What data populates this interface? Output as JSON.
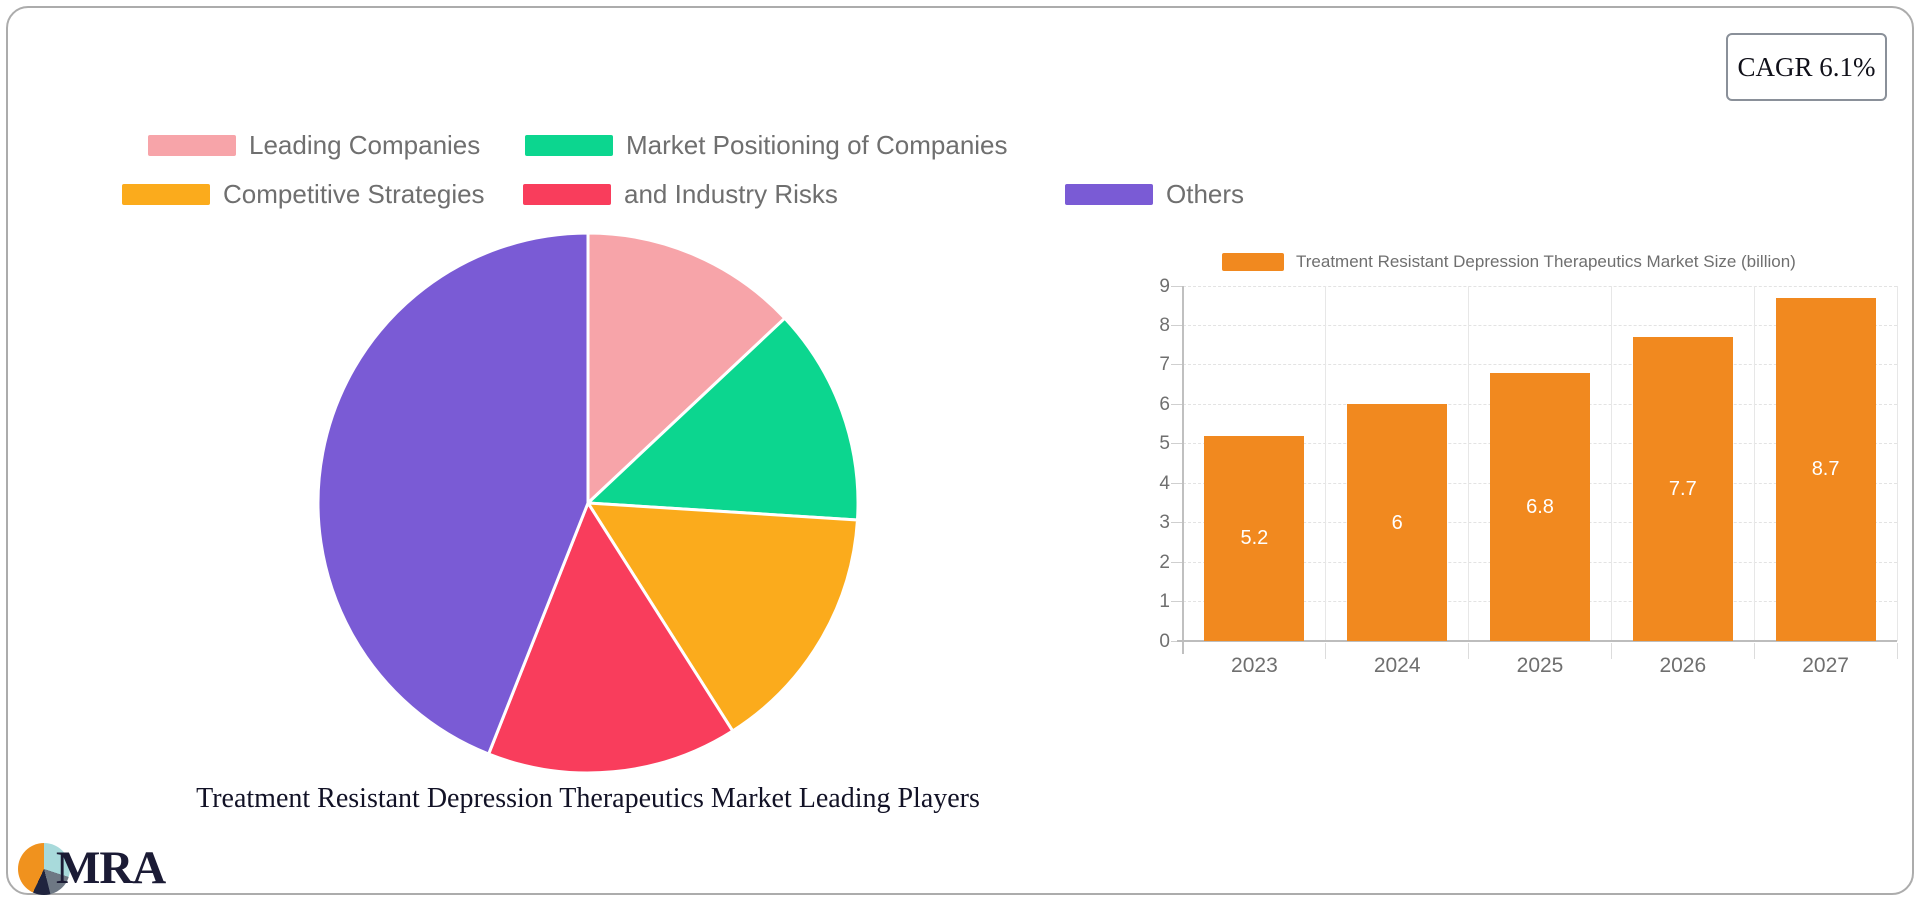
{
  "badge": {
    "label": "CAGR 6.1%"
  },
  "logo": {
    "text": "MRA"
  },
  "chart_data": [
    {
      "type": "pie",
      "title": "Treatment Resistant Depression Therapeutics Market Leading Players",
      "labels": [
        "Leading Companies",
        "Market Positioning of Companies",
        "Competitive Strategies",
        "and Industry Risks",
        "Others"
      ],
      "values": [
        13,
        13,
        15,
        15,
        44
      ],
      "colors": [
        "#F7A4A9",
        "#0CD68F",
        "#FBAB1C",
        "#F93D5C",
        "#7A5BD5"
      ],
      "start_angle_deg": 0,
      "direction": "clockwise",
      "legend_position": "top",
      "slice_border_color": "#ffffff"
    },
    {
      "type": "bar",
      "series_name": "Treatment Resistant Depression Therapeutics Market Size (billion)",
      "categories": [
        "2023",
        "2024",
        "2025",
        "2026",
        "2027"
      ],
      "values": [
        5.2,
        6,
        6.8,
        7.7,
        8.7
      ],
      "bar_color": "#F1891F",
      "value_label_color": "#ffffff",
      "ylim": [
        0,
        9
      ],
      "ytick_step": 1,
      "yticks": [
        0,
        1,
        2,
        3,
        4,
        5,
        6,
        7,
        8,
        9
      ],
      "grid": true,
      "tick_color": "#6F6F6F",
      "grid_color": "#E7E7E7",
      "axis_color": "#BFBFBF",
      "legend_position": "top"
    }
  ]
}
